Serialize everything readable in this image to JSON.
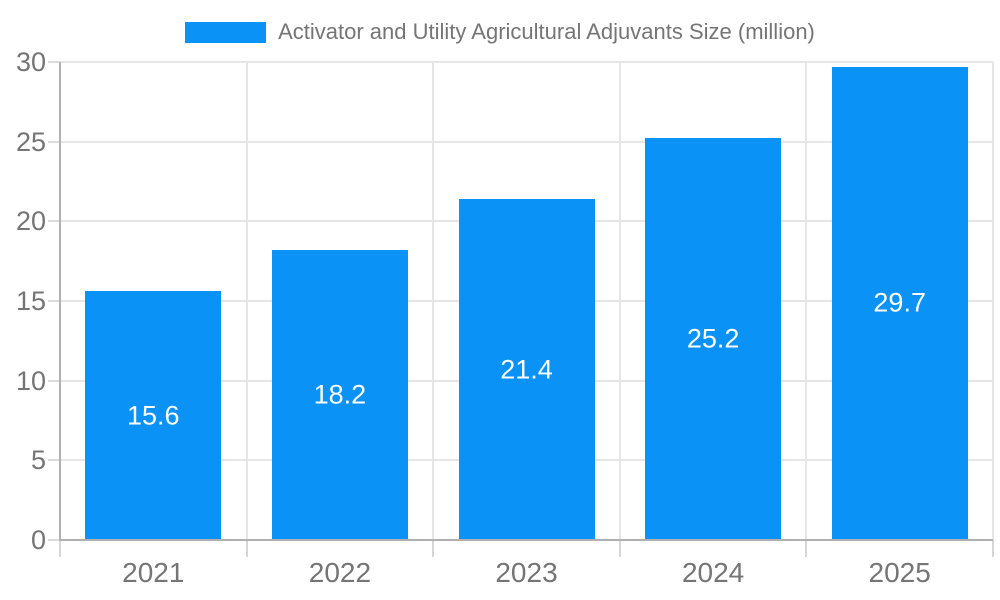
{
  "legend": {
    "label": "Activator and Utility Agricultural Adjuvants Size (million)"
  },
  "chart_data": {
    "type": "bar",
    "title": "Activator and Utility Agricultural Adjuvants Size (million)",
    "categories": [
      "2021",
      "2022",
      "2023",
      "2024",
      "2025"
    ],
    "values": [
      15.6,
      18.2,
      21.4,
      25.2,
      29.7
    ],
    "value_labels": [
      "15.6",
      "18.2",
      "21.4",
      "25.2",
      "29.7"
    ],
    "xlabel": "",
    "ylabel": "",
    "ylim": [
      0,
      30
    ],
    "ytick_step": 5,
    "ytick_labels": [
      "0",
      "5",
      "10",
      "15",
      "20",
      "25",
      "30"
    ],
    "grid": true,
    "legend_position": "top-center",
    "value_label_position": "center-inside-bar",
    "colors": {
      "bar": "#0a92f7",
      "value_label": "#ffffff",
      "axis_text": "#757575",
      "grid_line": "#e6e6e6",
      "axis_line": "#b0b0b0",
      "tick_line": "#d6d6d6"
    }
  }
}
